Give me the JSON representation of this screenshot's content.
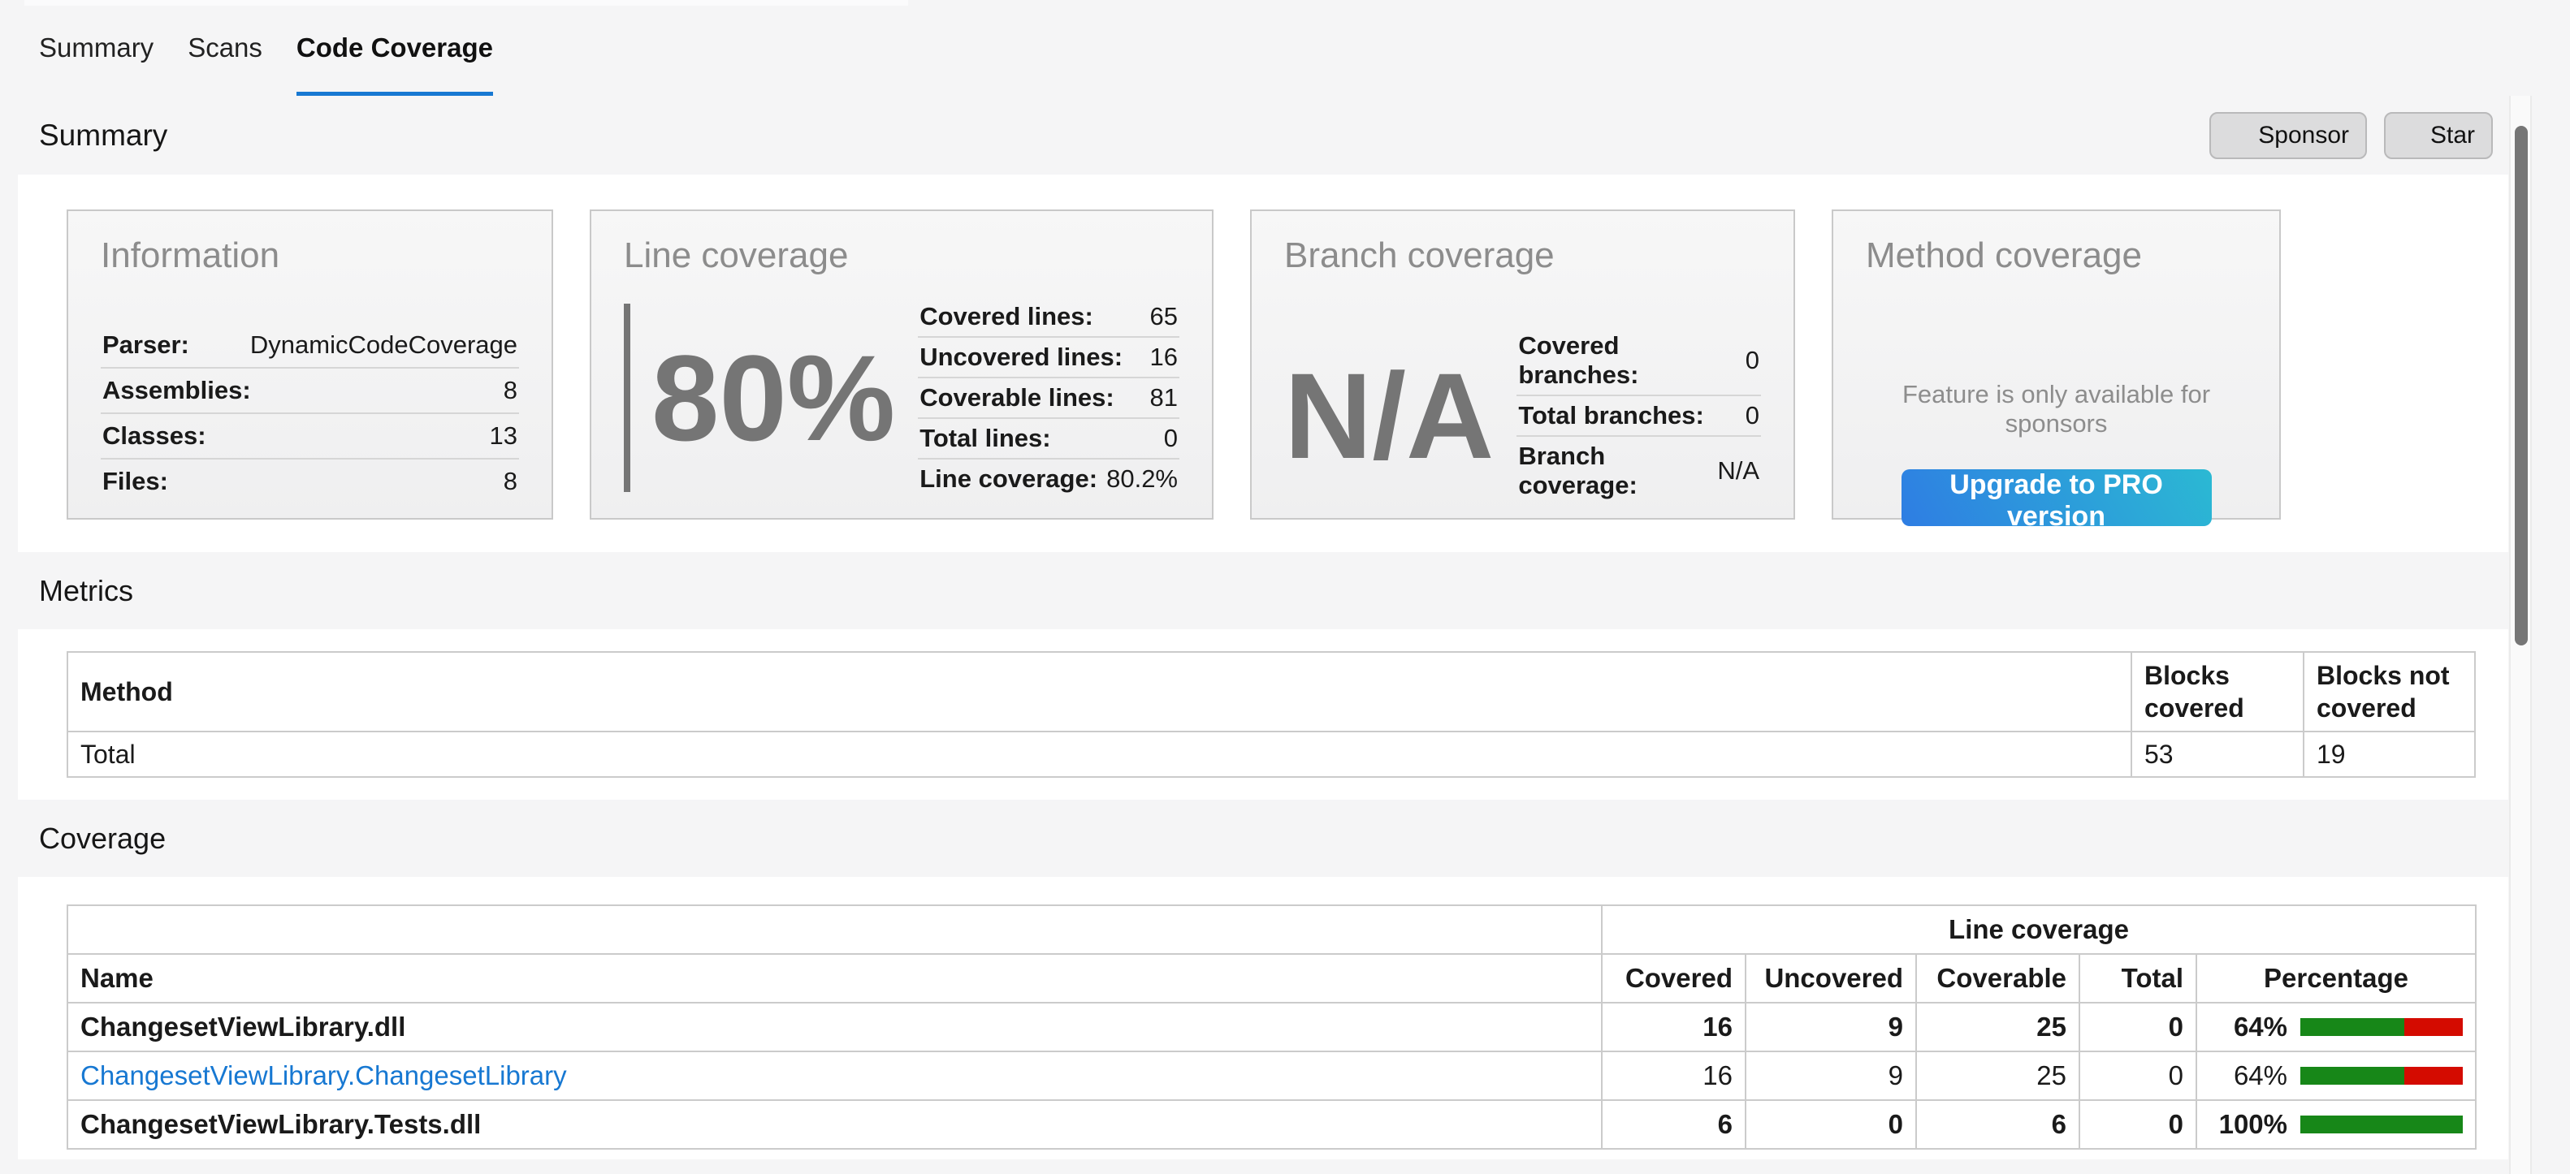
{
  "tabs": [
    {
      "label": "Summary",
      "active": false
    },
    {
      "label": "Scans",
      "active": false
    },
    {
      "label": "Code Coverage",
      "active": true
    }
  ],
  "header": {
    "title": "Summary",
    "sponsor_label": "Sponsor",
    "star_label": "Star"
  },
  "sections": {
    "metrics_heading": "Metrics",
    "coverage_heading": "Coverage"
  },
  "cards": {
    "information": {
      "title": "Information",
      "rows": [
        {
          "label": "Parser:",
          "value": "DynamicCodeCoverage"
        },
        {
          "label": "Assemblies:",
          "value": "8"
        },
        {
          "label": "Classes:",
          "value": "13"
        },
        {
          "label": "Files:",
          "value": "8"
        }
      ]
    },
    "line_coverage": {
      "title": "Line coverage",
      "big_value": "80%",
      "rows": [
        {
          "label": "Covered lines:",
          "value": "65"
        },
        {
          "label": "Uncovered lines:",
          "value": "16"
        },
        {
          "label": "Coverable lines:",
          "value": "81"
        },
        {
          "label": "Total lines:",
          "value": "0"
        },
        {
          "label": "Line coverage:",
          "value": "80.2%"
        }
      ]
    },
    "branch_coverage": {
      "title": "Branch coverage",
      "big_value": "N/A",
      "rows": [
        {
          "label": "Covered branches:",
          "value": "0"
        },
        {
          "label": "Total branches:",
          "value": "0"
        },
        {
          "label": "Branch coverage:",
          "value": "N/A"
        }
      ]
    },
    "method_coverage": {
      "title": "Method coverage",
      "message": "Feature is only available for sponsors",
      "button_label": "Upgrade to PRO version"
    }
  },
  "metrics_table": {
    "headers": [
      "Method",
      "Blocks covered",
      "Blocks not covered"
    ],
    "rows": [
      {
        "method": "Total",
        "blocks_covered": "53",
        "blocks_not_covered": "19"
      }
    ]
  },
  "coverage_table": {
    "group_header": "Line coverage",
    "headers": [
      "Name",
      "Covered",
      "Uncovered",
      "Coverable",
      "Total",
      "Percentage"
    ],
    "rows": [
      {
        "name": "ChangesetViewLibrary.dll",
        "kind": "assembly",
        "covered": "16",
        "uncovered": "9",
        "coverable": "25",
        "total": "0",
        "percentage": "64%",
        "pct": 64
      },
      {
        "name": "ChangesetViewLibrary.ChangesetLibrary",
        "kind": "class",
        "covered": "16",
        "uncovered": "9",
        "coverable": "25",
        "total": "0",
        "percentage": "64%",
        "pct": 64
      },
      {
        "name": "ChangesetViewLibrary.Tests.dll",
        "kind": "assembly",
        "covered": "6",
        "uncovered": "0",
        "coverable": "6",
        "total": "0",
        "percentage": "100%",
        "pct": 100
      }
    ]
  },
  "colors": {
    "accent_blue": "#1778d2",
    "link_blue": "#1778d2",
    "bar_green": "#178718",
    "bar_red": "#d40b00",
    "pro_button_gradient_start": "#2e7de3",
    "pro_button_gradient_end": "#2bb9d3",
    "big_number_gray": "#757575"
  }
}
